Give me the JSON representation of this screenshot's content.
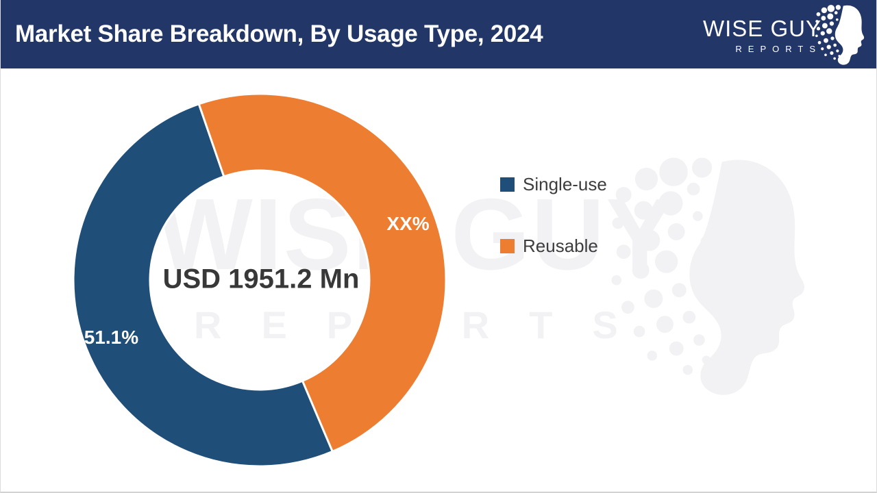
{
  "header": {
    "title": "Market Share Breakdown, By Usage Type, 2024",
    "logo": {
      "line1": "WISE GUY",
      "line2": "REPORTS"
    }
  },
  "watermark": {
    "line1": "WISE GUY",
    "line2": "REPORTS"
  },
  "chart_data": {
    "type": "pie",
    "donut": true,
    "title": "Market Share Breakdown, By Usage Type, 2024",
    "center_label": "USD 1951.2 Mn",
    "start_angle_deg": 157,
    "legend_position": "right",
    "slices": [
      {
        "label": "Single-use",
        "value": 51.1,
        "display": "51.1%",
        "color": "#1F4E79"
      },
      {
        "label": "Reusable",
        "value": 48.9,
        "display": "XX%",
        "color": "#ED7D31"
      }
    ]
  },
  "colors": {
    "header_bg": "#223768",
    "blue": "#1F4E79",
    "orange": "#ED7D31",
    "watermark": "#f2f2f5"
  }
}
